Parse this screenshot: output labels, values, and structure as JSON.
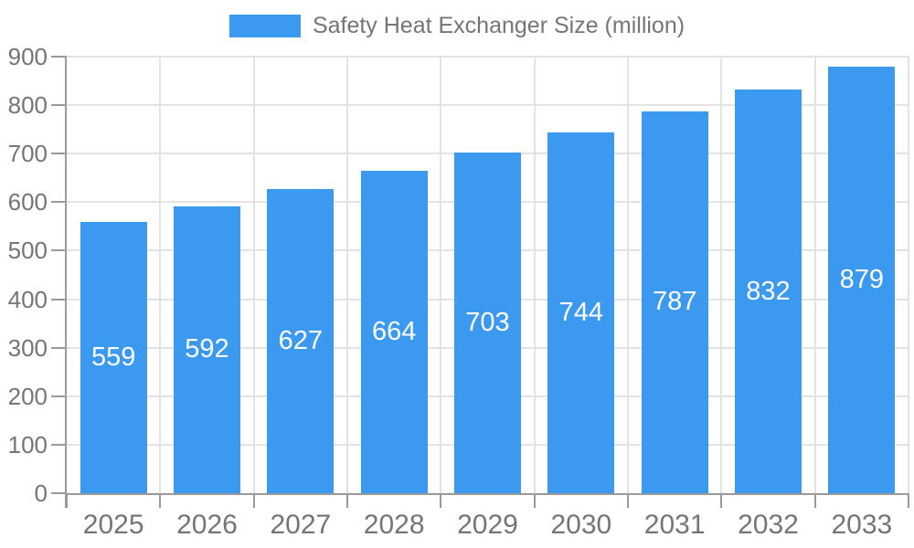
{
  "chart_data": {
    "type": "bar",
    "title": "",
    "legend": [
      "Safety Heat Exchanger Size (million)"
    ],
    "legend_position": "top-center",
    "categories": [
      "2025",
      "2026",
      "2027",
      "2028",
      "2029",
      "2030",
      "2031",
      "2032",
      "2033"
    ],
    "series": [
      {
        "name": "Safety Heat Exchanger Size (million)",
        "values": [
          559,
          592,
          627,
          664,
          703,
          744,
          787,
          832,
          879
        ]
      }
    ],
    "xlabel": "",
    "ylabel": "",
    "ylim": [
      0,
      900
    ],
    "y_ticks": [
      0,
      100,
      200,
      300,
      400,
      500,
      600,
      700,
      800,
      900
    ],
    "grid": true,
    "vertical_gridlines": true,
    "bar_value_labels": "inside-center",
    "colors": {
      "bar": "#3c99f0",
      "bar_label": "#ffffff",
      "grid_line": "#e3e3e3",
      "axis_line": "#9a9a9a",
      "tick_label": "#757575",
      "legend_text": "#757575",
      "background": "#ffffff"
    }
  }
}
